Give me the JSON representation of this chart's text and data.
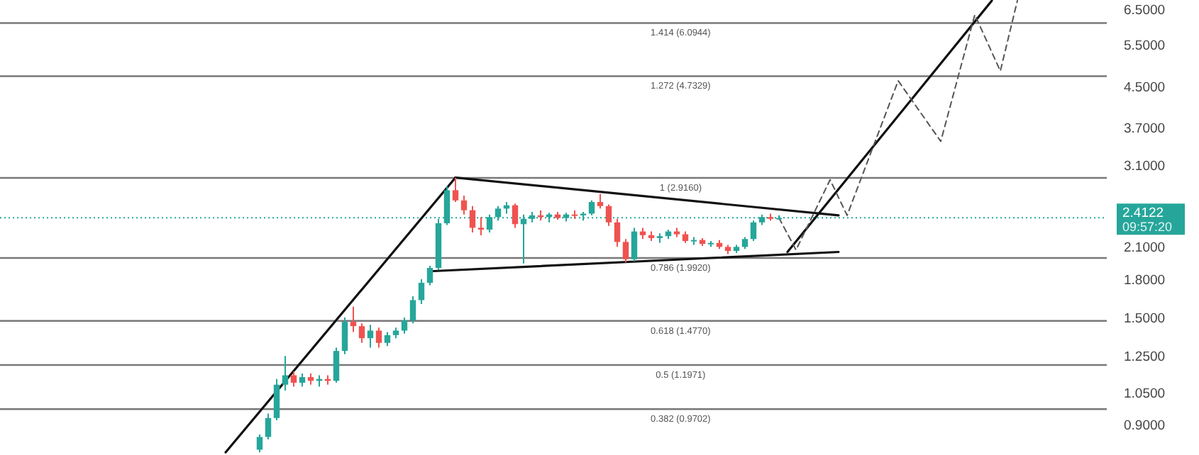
{
  "chart_data": {
    "type": "candlestick",
    "log": true,
    "tick_labels": "y",
    "grid": false,
    "ylim": [
      0.78,
      6.8
    ],
    "yticks": [
      {
        "value": 0.9,
        "label": "0.9000"
      },
      {
        "value": 1.05,
        "label": "1.0500"
      },
      {
        "value": 1.25,
        "label": "1.2500"
      },
      {
        "value": 1.5,
        "label": "1.5000"
      },
      {
        "value": 1.8,
        "label": "1.8000"
      },
      {
        "value": 2.1,
        "label": "2.1000"
      },
      {
        "value": 3.1,
        "label": "3.1000"
      },
      {
        "value": 3.7,
        "label": "3.7000"
      },
      {
        "value": 4.5,
        "label": "4.5000"
      },
      {
        "value": 5.5,
        "label": "5.5000"
      },
      {
        "value": 6.5,
        "label": "6.5000"
      }
    ],
    "categories": [
      null,
      null,
      null,
      null,
      null,
      null,
      null,
      null,
      null,
      null,
      null,
      null,
      null,
      null,
      null,
      null,
      null,
      null,
      null,
      null,
      null,
      null,
      null,
      null,
      null,
      null,
      null,
      null,
      null,
      null,
      null,
      null,
      null,
      null,
      null,
      null,
      null,
      null,
      null,
      null,
      null,
      null,
      null,
      null,
      null,
      null,
      null,
      null,
      null,
      null,
      null,
      null,
      null,
      null,
      null,
      null,
      null,
      null,
      null,
      null,
      null,
      null,
      null,
      null,
      null,
      null,
      null,
      null,
      null,
      null,
      null,
      null,
      null,
      null,
      null,
      null,
      null,
      null,
      null,
      null,
      null,
      null,
      null,
      null,
      null,
      null,
      null,
      null,
      null,
      null,
      null,
      null,
      null,
      null,
      null,
      null,
      null,
      null,
      null,
      null,
      null,
      null,
      null,
      null,
      null,
      null,
      null,
      null,
      null,
      null,
      null,
      null,
      null,
      null,
      null,
      null,
      null,
      null,
      null,
      null,
      null,
      null,
      null,
      null,
      null,
      null,
      null,
      null,
      null,
      null
    ],
    "ohlc": [
      null,
      null,
      null,
      null,
      null,
      null,
      null,
      null,
      null,
      null,
      null,
      null,
      null,
      null,
      null,
      null,
      null,
      null,
      null,
      null,
      null,
      null,
      null,
      null,
      null,
      null,
      null,
      null,
      null,
      null,
      [
        0.8,
        0.86,
        0.79,
        0.85
      ],
      [
        0.85,
        0.95,
        0.84,
        0.93
      ],
      [
        0.93,
        1.12,
        0.92,
        1.09
      ],
      [
        1.09,
        1.25,
        1.06,
        1.14
      ],
      [
        1.14,
        1.16,
        1.08,
        1.1
      ],
      [
        1.1,
        1.15,
        1.08,
        1.13
      ],
      [
        1.13,
        1.15,
        1.09,
        1.11
      ],
      [
        1.11,
        1.14,
        1.08,
        1.12
      ],
      [
        1.12,
        1.14,
        1.09,
        1.11
      ],
      [
        1.11,
        1.3,
        1.1,
        1.28
      ],
      [
        1.28,
        1.5,
        1.26,
        1.47
      ],
      [
        1.47,
        1.58,
        1.4,
        1.44
      ],
      [
        1.44,
        1.46,
        1.33,
        1.36
      ],
      [
        1.36,
        1.45,
        1.3,
        1.41
      ],
      [
        1.41,
        1.43,
        1.3,
        1.33
      ],
      [
        1.33,
        1.4,
        1.31,
        1.38
      ],
      [
        1.38,
        1.43,
        1.36,
        1.41
      ],
      [
        1.41,
        1.5,
        1.39,
        1.48
      ],
      [
        1.48,
        1.66,
        1.46,
        1.63
      ],
      [
        1.63,
        1.8,
        1.6,
        1.77
      ],
      [
        1.77,
        1.92,
        1.75,
        1.9
      ],
      [
        1.9,
        2.4,
        1.88,
        2.35
      ],
      [
        2.35,
        2.8,
        2.33,
        2.75
      ],
      [
        2.75,
        2.92,
        2.6,
        2.62
      ],
      [
        2.62,
        2.68,
        2.45,
        2.5
      ],
      [
        2.5,
        2.55,
        2.25,
        2.3
      ],
      [
        2.3,
        2.42,
        2.22,
        2.28
      ],
      [
        2.28,
        2.45,
        2.25,
        2.42
      ],
      [
        2.42,
        2.55,
        2.38,
        2.52
      ],
      [
        2.52,
        2.6,
        2.46,
        2.56
      ],
      [
        2.56,
        2.58,
        2.3,
        2.34
      ],
      [
        2.34,
        2.45,
        1.94,
        2.4
      ],
      [
        2.4,
        2.48,
        2.36,
        2.44
      ],
      [
        2.44,
        2.5,
        2.38,
        2.42
      ],
      [
        2.42,
        2.47,
        2.36,
        2.45
      ],
      [
        2.45,
        2.48,
        2.39,
        2.41
      ],
      [
        2.41,
        2.47,
        2.37,
        2.45
      ],
      [
        2.45,
        2.5,
        2.4,
        2.44
      ],
      [
        2.44,
        2.48,
        2.38,
        2.46
      ],
      [
        2.46,
        2.62,
        2.44,
        2.6
      ],
      [
        2.6,
        2.7,
        2.52,
        2.55
      ],
      [
        2.55,
        2.57,
        2.32,
        2.36
      ],
      [
        2.36,
        2.4,
        2.1,
        2.15
      ],
      [
        2.15,
        2.18,
        1.95,
        1.98
      ],
      [
        1.98,
        2.3,
        1.96,
        2.26
      ],
      [
        2.26,
        2.3,
        2.18,
        2.22
      ],
      [
        2.22,
        2.26,
        2.16,
        2.19
      ],
      [
        2.19,
        2.24,
        2.14,
        2.21
      ],
      [
        2.21,
        2.28,
        2.18,
        2.26
      ],
      [
        2.26,
        2.3,
        2.2,
        2.23
      ],
      [
        2.23,
        2.26,
        2.14,
        2.16
      ],
      [
        2.16,
        2.2,
        2.12,
        2.17
      ],
      [
        2.17,
        2.19,
        2.11,
        2.13
      ],
      [
        2.13,
        2.16,
        2.1,
        2.14
      ],
      [
        2.14,
        2.17,
        2.08,
        2.1
      ],
      [
        2.1,
        2.12,
        2.03,
        2.06
      ],
      [
        2.06,
        2.12,
        2.04,
        2.1
      ],
      [
        2.1,
        2.2,
        2.08,
        2.18
      ],
      [
        2.18,
        2.38,
        2.16,
        2.36
      ],
      [
        2.36,
        2.45,
        2.33,
        2.42
      ],
      [
        2.42,
        2.46,
        2.38,
        2.4
      ],
      [
        2.4,
        2.44,
        2.39,
        2.41
      ],
      null,
      null,
      null,
      null,
      null,
      null,
      null,
      null,
      null,
      null,
      null,
      null,
      null,
      null,
      null,
      null,
      null,
      null,
      null,
      null,
      null,
      null,
      null,
      null,
      null,
      null,
      null,
      null,
      null,
      null,
      null,
      null,
      null,
      null,
      null,
      null,
      null,
      null
    ],
    "colors": [
      null,
      null,
      null,
      null,
      null,
      null,
      null,
      null,
      null,
      null,
      null,
      null,
      null,
      null,
      null,
      null,
      null,
      null,
      null,
      null,
      null,
      null,
      null,
      null,
      null,
      null,
      null,
      null,
      null,
      null,
      "#26a69a",
      "#26a69a",
      "#26a69a",
      "#26a69a",
      "#ef5350",
      "#26a69a",
      "#ef5350",
      "#26a69a",
      "#ef5350",
      "#26a69a",
      "#26a69a",
      "#ef5350",
      "#ef5350",
      "#26a69a",
      "#ef5350",
      "#26a69a",
      "#26a69a",
      "#26a69a",
      "#26a69a",
      "#26a69a",
      "#26a69a",
      "#26a69a",
      "#26a69a",
      "#ef5350",
      "#ef5350",
      "#ef5350",
      "#ef5350",
      "#26a69a",
      "#26a69a",
      "#26a69a",
      "#ef5350",
      "#26a69a",
      "#26a69a",
      "#ef5350",
      "#26a69a",
      "#ef5350",
      "#26a69a",
      "#ef5350",
      "#26a69a",
      "#26a69a",
      "#ef5350",
      "#ef5350",
      "#ef5350",
      "#ef5350",
      "#26a69a",
      "#ef5350",
      "#ef5350",
      "#26a69a",
      "#26a69a",
      "#ef5350",
      "#ef5350",
      "#26a69a",
      "#ef5350",
      "#26a69a",
      "#ef5350",
      "#ef5350",
      "#26a69a",
      "#26a69a",
      "#26a69a",
      "#26a69a",
      "#ef5350",
      "#26a69a",
      null,
      null,
      null,
      null,
      null,
      null,
      null,
      null,
      null,
      null,
      null,
      null,
      null,
      null,
      null,
      null,
      null,
      null,
      null,
      null,
      null,
      null,
      null,
      null,
      null,
      null,
      null,
      null,
      null,
      null,
      null,
      null,
      null,
      null,
      null,
      null,
      null,
      null
    ],
    "series": [
      {
        "type": "line",
        "color": "#111111",
        "line_style": "solid",
        "values": [
          null,
          null,
          null,
          null,
          null,
          null,
          null,
          null,
          null,
          null,
          null,
          null,
          null,
          null,
          null,
          null,
          null,
          null,
          null,
          null,
          null,
          null,
          null,
          null,
          null,
          null,
          0.79,
          null,
          null,
          null,
          null,
          null,
          null,
          null,
          null,
          null,
          null,
          null,
          null,
          null,
          null,
          null,
          null,
          null,
          null,
          null,
          null,
          null,
          null,
          null,
          null,
          null,
          null,
          2.92,
          null,
          null,
          null,
          null,
          null,
          null,
          null,
          null,
          null,
          null,
          null,
          null,
          null,
          null,
          null,
          null,
          null,
          null,
          null,
          null,
          null,
          null,
          null,
          null,
          null,
          null,
          null,
          null,
          null,
          null,
          null,
          null,
          null,
          null,
          null,
          null,
          null,
          null,
          null,
          null,
          null,
          null,
          null,
          null,
          null,
          null,
          null,
          null,
          null,
          null,
          null,
          null,
          null,
          null,
          null,
          null,
          null,
          null,
          null,
          null,
          null,
          null,
          null,
          null,
          null,
          null,
          null,
          null,
          null,
          null,
          null,
          null,
          null,
          null,
          null,
          null
        ]
      },
      {
        "type": "line",
        "color": "#111111",
        "line_style": "solid",
        "values": [
          null,
          null,
          null,
          null,
          null,
          null,
          null,
          null,
          null,
          null,
          null,
          null,
          null,
          null,
          null,
          null,
          null,
          null,
          null,
          null,
          null,
          null,
          null,
          null,
          null,
          null,
          null,
          null,
          null,
          null,
          null,
          null,
          null,
          null,
          null,
          null,
          null,
          null,
          null,
          null,
          null,
          null,
          null,
          null,
          null,
          null,
          null,
          null,
          null,
          null,
          null,
          null,
          null,
          2.92,
          null,
          null,
          null,
          null,
          null,
          null,
          null,
          null,
          null,
          null,
          null,
          null,
          null,
          null,
          null,
          null,
          null,
          null,
          null,
          null,
          null,
          null,
          null,
          null,
          null,
          null,
          null,
          null,
          null,
          null,
          null,
          null,
          null,
          null,
          null,
          null,
          null,
          null,
          null,
          null,
          null,
          null,
          null,
          null,
          2.44,
          null,
          null,
          null,
          null,
          null,
          null,
          null,
          null,
          null,
          null,
          null,
          null,
          null,
          null,
          null,
          null,
          null,
          null,
          null,
          null,
          null,
          null,
          null,
          null,
          null,
          null,
          null,
          null,
          null,
          null,
          null
        ]
      },
      {
        "type": "line",
        "color": "#111111",
        "line_style": "solid",
        "values": [
          null,
          null,
          null,
          null,
          null,
          null,
          null,
          null,
          null,
          null,
          null,
          null,
          null,
          null,
          null,
          null,
          null,
          null,
          null,
          null,
          null,
          null,
          null,
          null,
          null,
          null,
          null,
          null,
          null,
          null,
          null,
          null,
          null,
          null,
          null,
          null,
          null,
          null,
          null,
          null,
          null,
          null,
          null,
          null,
          null,
          null,
          null,
          null,
          null,
          null,
          1.87,
          null,
          null,
          null,
          null,
          null,
          null,
          null,
          null,
          null,
          null,
          null,
          null,
          null,
          null,
          null,
          null,
          null,
          null,
          null,
          null,
          null,
          null,
          null,
          null,
          null,
          null,
          null,
          null,
          null,
          null,
          null,
          null,
          null,
          null,
          null,
          null,
          null,
          null,
          null,
          null,
          null,
          null,
          null,
          null,
          null,
          null,
          null,
          2.05,
          null,
          null,
          null,
          null,
          null,
          null,
          null,
          null,
          null,
          null,
          null,
          null,
          null,
          null,
          null,
          null,
          null,
          null,
          null,
          null,
          null,
          null,
          null,
          null,
          null,
          null,
          null,
          null,
          null,
          null,
          null
        ]
      },
      {
        "type": "line",
        "color": "#111111",
        "line_style": "solid",
        "values": [
          null,
          null,
          null,
          null,
          null,
          null,
          null,
          null,
          null,
          null,
          null,
          null,
          null,
          null,
          null,
          null,
          null,
          null,
          null,
          null,
          null,
          null,
          null,
          null,
          null,
          null,
          null,
          null,
          null,
          null,
          null,
          null,
          null,
          null,
          null,
          null,
          null,
          null,
          null,
          null,
          null,
          null,
          null,
          null,
          null,
          null,
          null,
          null,
          null,
          null,
          null,
          null,
          null,
          null,
          null,
          null,
          null,
          null,
          null,
          null,
          null,
          null,
          null,
          null,
          null,
          null,
          null,
          null,
          null,
          null,
          null,
          null,
          null,
          null,
          null,
          null,
          null,
          null,
          null,
          null,
          null,
          null,
          null,
          null,
          null,
          null,
          null,
          null,
          null,
          null,
          null,
          null,
          2.05,
          null,
          null,
          null,
          null,
          null,
          null,
          null,
          null,
          null,
          null,
          null,
          null,
          null,
          null,
          null,
          null,
          null,
          null,
          null,
          null,
          null,
          null,
          null,
          6.78,
          null,
          null,
          null,
          null,
          null,
          null,
          null,
          null,
          null,
          null,
          null,
          null,
          null
        ]
      },
      {
        "type": "line",
        "color": "#555555",
        "line_style": "dashed",
        "values": [
          null,
          null,
          null,
          null,
          null,
          null,
          null,
          null,
          null,
          null,
          null,
          null,
          null,
          null,
          null,
          null,
          null,
          null,
          null,
          null,
          null,
          null,
          null,
          null,
          null,
          null,
          null,
          null,
          null,
          null,
          null,
          null,
          null,
          null,
          null,
          null,
          null,
          null,
          null,
          null,
          null,
          null,
          null,
          null,
          null,
          null,
          null,
          null,
          null,
          null,
          null,
          null,
          null,
          null,
          null,
          null,
          null,
          null,
          null,
          null,
          null,
          null,
          null,
          null,
          null,
          null,
          null,
          null,
          null,
          null,
          null,
          null,
          null,
          null,
          null,
          null,
          null,
          null,
          null,
          null,
          null,
          null,
          null,
          null,
          null,
          null,
          null,
          null,
          null,
          null,
          null,
          2.41,
          null,
          2.07,
          null,
          null,
          null,
          2.89,
          null,
          2.44,
          null,
          null,
          null,
          null,
          null,
          4.63,
          null,
          null,
          null,
          null,
          3.47,
          null,
          null,
          null,
          6.34,
          null,
          null,
          4.85,
          null,
          6.78,
          null,
          null,
          null,
          null,
          null,
          null,
          null,
          null,
          null,
          null
        ]
      }
    ],
    "ref_lines": [
      {
        "axis": "y",
        "value": 6.0944,
        "label": "1.414 (6.0944)",
        "color": "#787878",
        "line_style": "solid"
      },
      {
        "axis": "y",
        "value": 4.7329,
        "label": "1.272 (4.7329)",
        "color": "#787878",
        "line_style": "solid"
      },
      {
        "axis": "y",
        "value": 2.916,
        "label": "1 (2.9160)",
        "color": "#787878",
        "line_style": "solid"
      },
      {
        "axis": "y",
        "value": 1.992,
        "label": "0.786 (1.9920)",
        "color": "#787878",
        "line_style": "solid"
      },
      {
        "axis": "y",
        "value": 1.477,
        "label": "0.618 (1.4770)",
        "color": "#787878",
        "line_style": "solid"
      },
      {
        "axis": "y",
        "value": 1.1971,
        "label": "0.5 (1.1971)",
        "color": "#787878",
        "line_style": "solid"
      },
      {
        "axis": "y",
        "value": 0.9702,
        "label": "0.382 (0.9702)",
        "color": "#787878",
        "line_style": "solid"
      },
      {
        "axis": "y",
        "value": 2.4122,
        "label": "2.4122",
        "color": "#26a69a",
        "line_style": "dotted"
      }
    ],
    "annotations": [
      "09:57:20"
    ]
  }
}
